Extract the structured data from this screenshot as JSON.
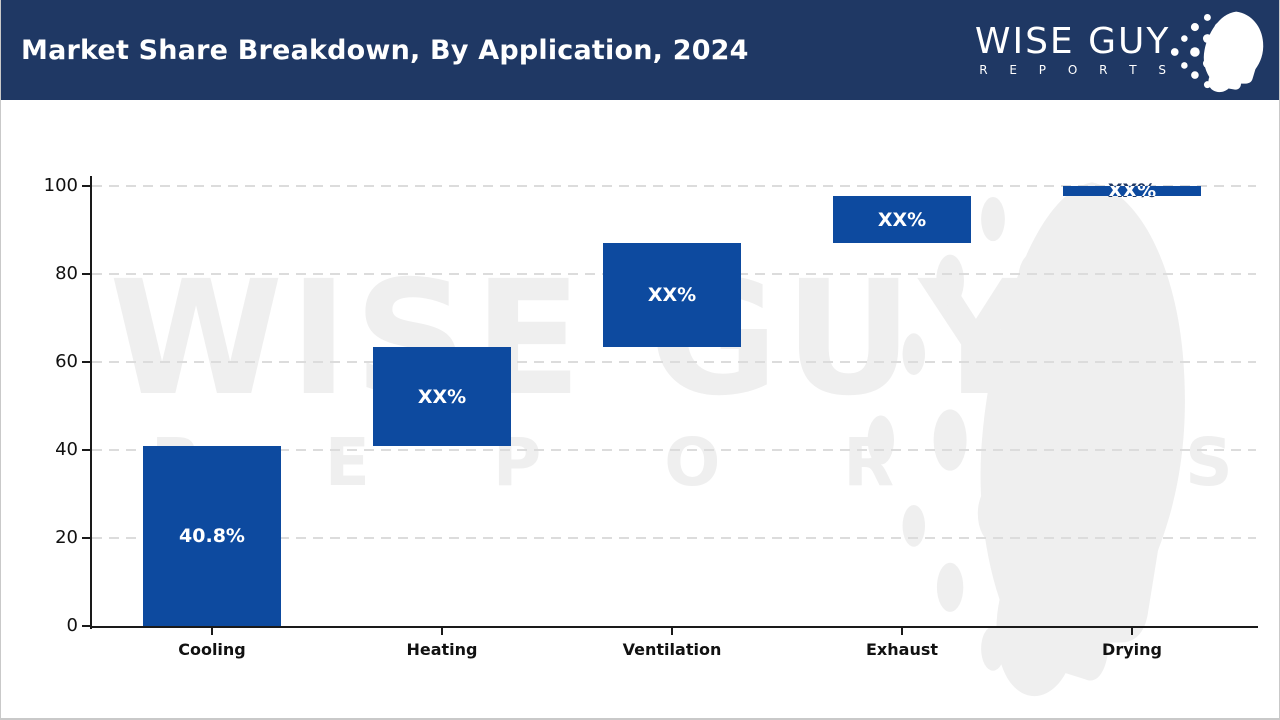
{
  "header": {
    "title": "Market Share Breakdown, By Application, 2024",
    "logo": {
      "line1": "WISE GUY",
      "line2": "R E P O R T S"
    }
  },
  "watermark": {
    "line1": "WISE GUY",
    "line2": "R E P O R T S"
  },
  "chart_data": {
    "type": "bar",
    "subtype": "waterfall",
    "title": "Market Share Breakdown, By Application, 2024",
    "xlabel": "",
    "ylabel": "",
    "categories": [
      "Cooling",
      "Heating",
      "Ventilation",
      "Exhaust",
      "Drying"
    ],
    "segments": [
      {
        "category": "Cooling",
        "start": 0,
        "end": 40.8,
        "label": "40.8%"
      },
      {
        "category": "Heating",
        "start": 40.8,
        "end": 63.5,
        "label": "XX%"
      },
      {
        "category": "Ventilation",
        "start": 63.5,
        "end": 87.0,
        "label": "XX%"
      },
      {
        "category": "Exhaust",
        "start": 87.0,
        "end": 97.7,
        "label": "XX%"
      },
      {
        "category": "Drying",
        "start": 97.7,
        "end": 100,
        "label": "XX%"
      }
    ],
    "yticks": [
      0,
      20,
      40,
      60,
      80,
      100
    ],
    "ylim": [
      0,
      105
    ],
    "grid": "horizontal-dashed",
    "legend": "none"
  },
  "colors": {
    "header_bg": "#1f3864",
    "bar": "#0d4a9f",
    "axis": "#1a1a1a",
    "grid": "#dcdcdc",
    "watermark": "#efefef",
    "page_border": "#c9c9c9",
    "label_inside": "#ffffff",
    "label_outside": "#1f3864"
  }
}
